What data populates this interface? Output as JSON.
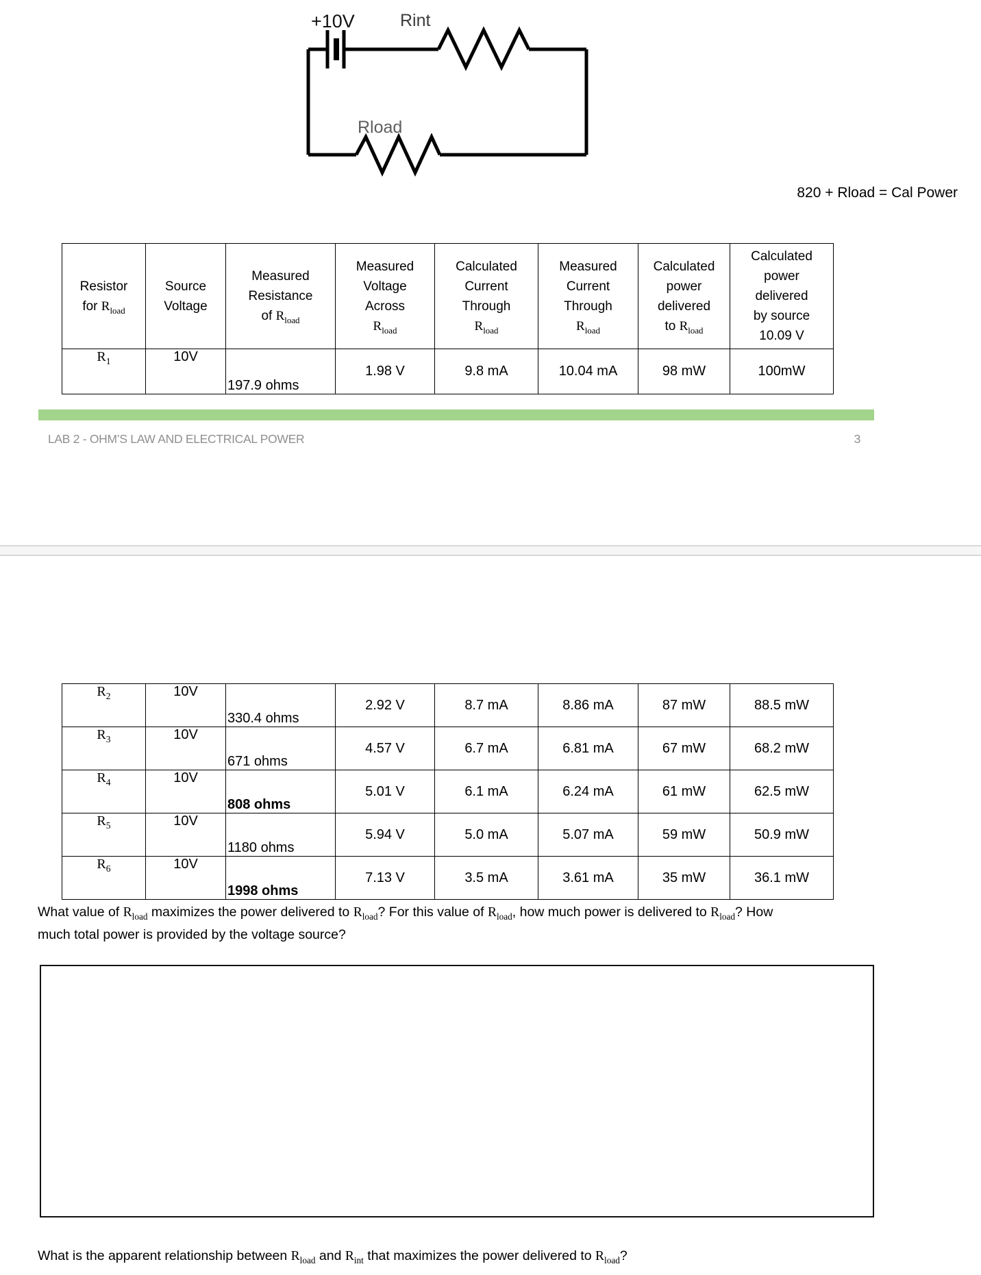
{
  "circuit": {
    "source_label": "+10V",
    "rint_label": "Rint",
    "rload_label": "Rload"
  },
  "formula_note": "820 + Rload = Cal Power",
  "results_table": {
    "headers": [
      [
        "Resistor",
        "for R_{load}"
      ],
      [
        "Source",
        "Voltage"
      ],
      [
        "Measured",
        "Resistance",
        "of R_{load}"
      ],
      [
        "Measured",
        "Voltage",
        "Across",
        "R_{load}"
      ],
      [
        "Calculated",
        "Current",
        "Through",
        "R_{load}"
      ],
      [
        "Measured",
        "Current",
        "Through",
        "R_{load}"
      ],
      [
        "Calculated",
        "power",
        "delivered",
        "to R_{load}"
      ],
      [
        "Calculated",
        "power",
        "delivered",
        "by source",
        "10.09 V"
      ]
    ],
    "page1_rows": [
      [
        "R_{1}",
        "10V",
        "197.9 ohms",
        "1.98 V",
        "9.8 mA",
        "10.04 mA",
        "98 mW",
        "100mW"
      ]
    ],
    "page2_rows": [
      [
        "R_{2}",
        "10V",
        "330.4 ohms",
        "2.92 V",
        "8.7 mA",
        "8.86 mA",
        "87 mW",
        "88.5 mW"
      ],
      [
        "R_{3}",
        "10V",
        "671 ohms",
        "4.57 V",
        "6.7 mA",
        "6.81 mA",
        "67 mW",
        "68.2 mW"
      ],
      [
        "R_{4}",
        "10V",
        "**808 ohms**",
        "5.01 V",
        "6.1 mA",
        "6.24 mA",
        "61 mW",
        "62.5 mW"
      ],
      [
        "R_{5}",
        "10V",
        "1180 ohms",
        "5.94 V",
        "5.0 mA",
        "5.07 mA",
        "59 mW",
        "50.9 mW"
      ],
      [
        "R_{6}",
        "10V",
        "**1998 ohms**",
        "7.13 V",
        "3.5 mA",
        "3.61 mA",
        "35 mW",
        "36.1 mW"
      ]
    ]
  },
  "footer": {
    "title": "LAB 2 - OHM’S LAW AND ELECTRICAL POWER",
    "page_number": "3"
  },
  "questions": {
    "q1": "What value of R_{load} maximizes the power delivered to R_{load}? For this value of R_{load}, how much power is delivered to R_{load}? How much total power is provided by the voltage source?",
    "q2": "What is the apparent relationship between R_{load} and R_{int} that maximizes the power delivered to R_{load}?"
  },
  "colors": {
    "divider_green": "#a3d48b",
    "footer_gray": "#8f8f8f",
    "page_band_gray": "#f6f6f6"
  }
}
